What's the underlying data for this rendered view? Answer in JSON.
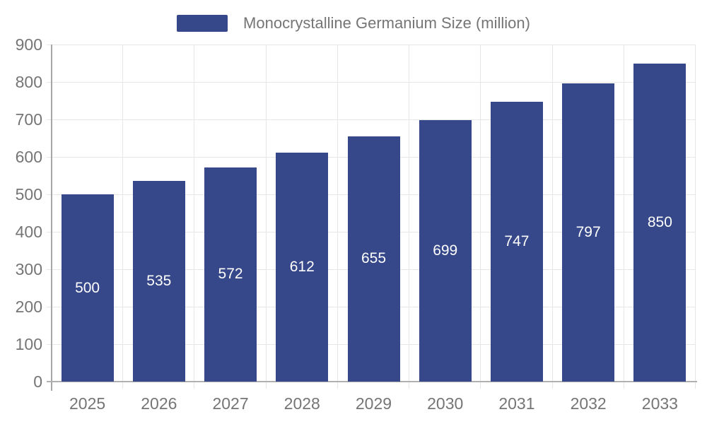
{
  "chart_data": {
    "type": "bar",
    "title": "Monocrystalline Germanium Size (million)",
    "legend_label": "Monocrystalline Germanium Size (million)",
    "legend_position": "top-center",
    "categories": [
      "2025",
      "2026",
      "2027",
      "2028",
      "2029",
      "2030",
      "2031",
      "2032",
      "2033"
    ],
    "values": [
      500,
      535,
      572,
      612,
      655,
      699,
      747,
      797,
      850
    ],
    "xlabel": "",
    "ylabel": "",
    "ylim": [
      0,
      900
    ],
    "ytick_step": 100,
    "yticks": [
      "0",
      "100",
      "200",
      "300",
      "400",
      "500",
      "600",
      "700",
      "800",
      "900"
    ],
    "grid": true,
    "value_labels_shown": true,
    "value_label_position": "inside-center",
    "colors": {
      "bar": "#36488a",
      "bar_value_text": "#ffffff",
      "axis_text": "#757575",
      "legend_text": "#757575",
      "gridline": "#e6e6e6",
      "axis_line": "#a6a6a6",
      "baseline": "#b0b0b0",
      "background": "#ffffff"
    }
  }
}
